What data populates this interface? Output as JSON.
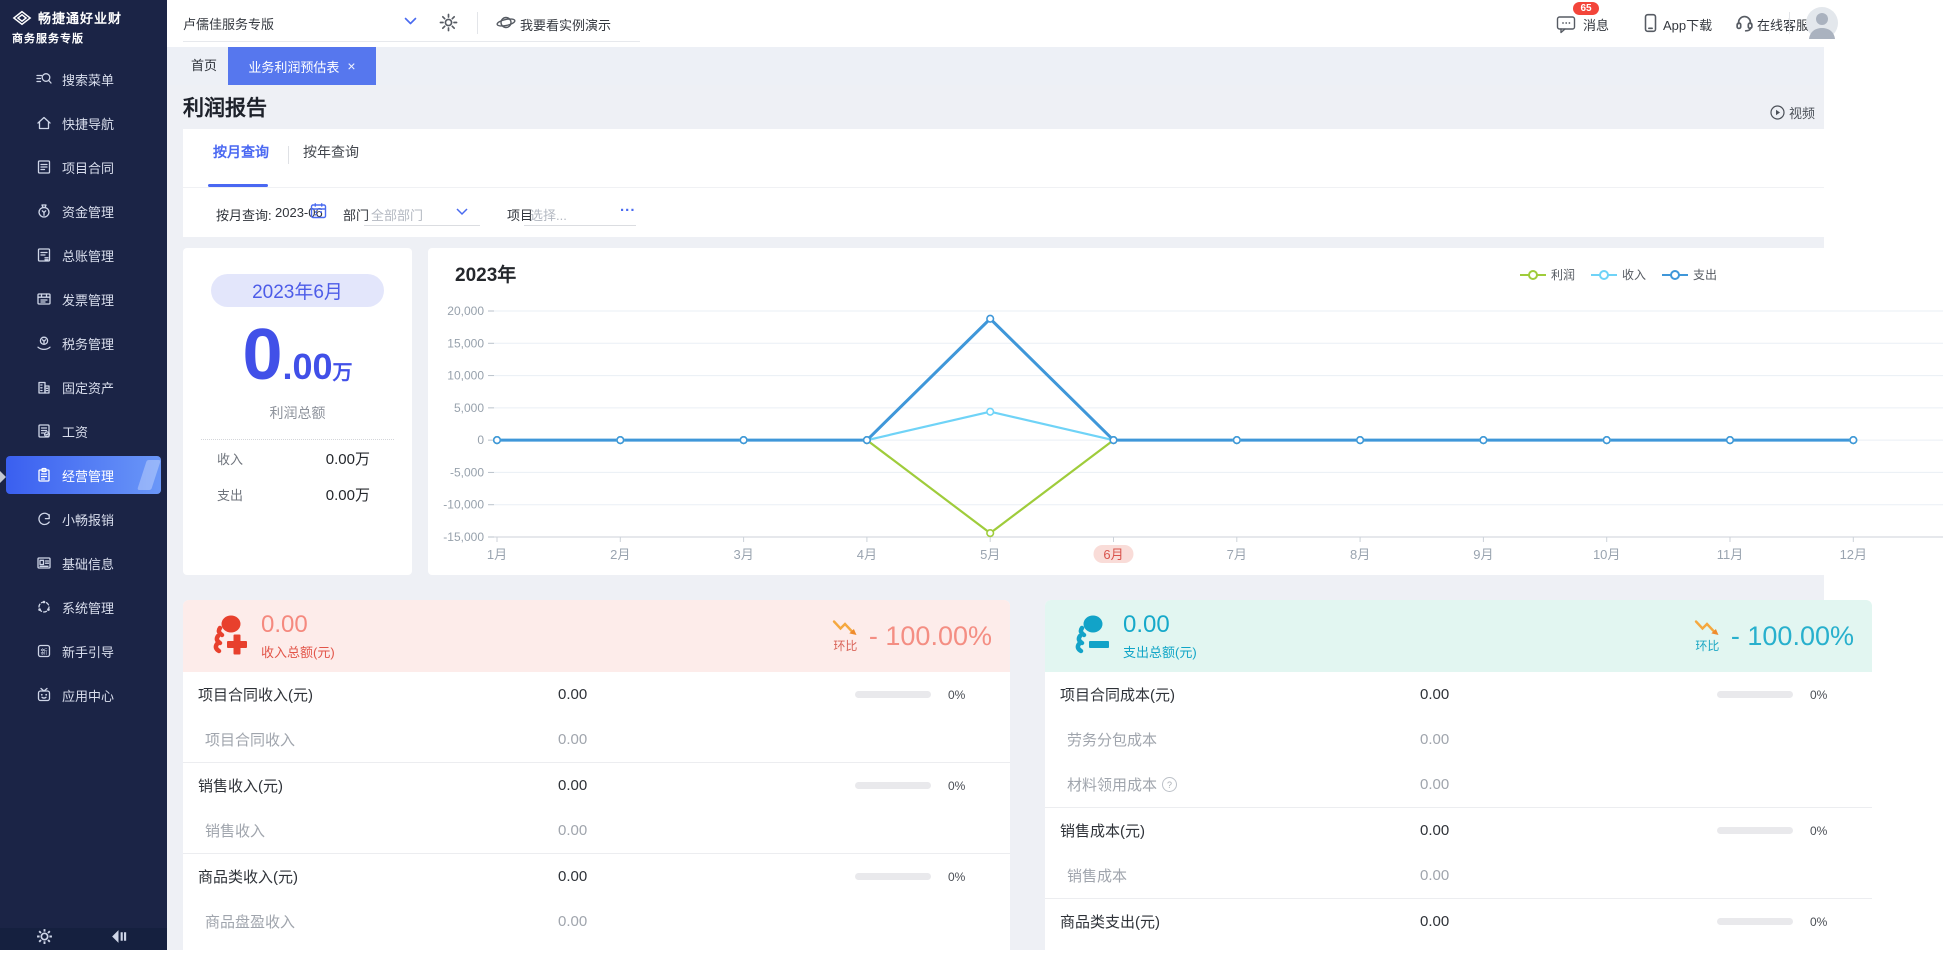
{
  "sidebar": {
    "logo_title": "畅捷通好业财",
    "logo_subtitle": "商务服务专版",
    "items": [
      {
        "label": "搜索菜单",
        "icon": "search"
      },
      {
        "label": "快捷导航",
        "icon": "home"
      },
      {
        "label": "项目合同",
        "icon": "contract"
      },
      {
        "label": "资金管理",
        "icon": "funds"
      },
      {
        "label": "总账管理",
        "icon": "ledger"
      },
      {
        "label": "发票管理",
        "icon": "invoice"
      },
      {
        "label": "税务管理",
        "icon": "tax"
      },
      {
        "label": "固定资产",
        "icon": "assets"
      },
      {
        "label": "工资",
        "icon": "salary"
      },
      {
        "label": "经营管理",
        "icon": "operations",
        "active": true
      },
      {
        "label": "小畅报销",
        "icon": "expense"
      },
      {
        "label": "基础信息",
        "icon": "info"
      },
      {
        "label": "系统管理",
        "icon": "system"
      },
      {
        "label": "新手引导",
        "icon": "guide"
      },
      {
        "label": "应用中心",
        "icon": "apps"
      }
    ]
  },
  "topbar": {
    "workspace": "卢儒佳服务专版",
    "demo_link": "我要看实例演示",
    "messages_label": "消息",
    "messages_badge": "65",
    "app_download_label": "App下载",
    "support_label": "在线客服"
  },
  "tabs": {
    "home": "首页",
    "active_tab": "业务利润预估表"
  },
  "page": {
    "title": "利润报告",
    "video_label": "视频"
  },
  "query": {
    "tab_month": "按月查询",
    "tab_year": "按年查询",
    "month_label": "按月查询:",
    "month_value": "2023-06",
    "dept_label": "部门",
    "dept_value": "全部部门",
    "project_label": "项目",
    "project_placeholder": "选择...",
    "project_more": "..."
  },
  "summary": {
    "period": "2023年6月",
    "big_int": "0",
    "big_dec": ".00",
    "big_unit": "万",
    "big_caption": "利润总额",
    "rows": [
      {
        "label": "收入",
        "value": "0.00万"
      },
      {
        "label": "支出",
        "value": "0.00万"
      }
    ]
  },
  "chart_data": {
    "type": "line",
    "title": "2023年",
    "categories": [
      "1月",
      "2月",
      "3月",
      "4月",
      "5月",
      "6月",
      "7月",
      "8月",
      "9月",
      "10月",
      "11月",
      "12月"
    ],
    "highlighted_category": "6月",
    "series": [
      {
        "name": "利润",
        "color": "#9fcc3b",
        "values": [
          0,
          0,
          0,
          0,
          -14400,
          0,
          0,
          0,
          0,
          0,
          0,
          0
        ]
      },
      {
        "name": "收入",
        "color": "#6fd3f7",
        "values": [
          0,
          0,
          0,
          0,
          4400,
          0,
          0,
          0,
          0,
          0,
          0,
          0
        ]
      },
      {
        "name": "支出",
        "color": "#3f97d9",
        "values": [
          0,
          0,
          0,
          0,
          18800,
          0,
          0,
          0,
          0,
          0,
          0,
          0
        ]
      }
    ],
    "ylim": [
      -15000,
      20000
    ],
    "ytick_step": 5000,
    "ytick_labels": [
      "20,000",
      "15,000",
      "10,000",
      "5,000",
      "0",
      "-5,000",
      "-10,000",
      "-15,000"
    ],
    "grid": true,
    "legend_position": "top-right"
  },
  "income_card": {
    "total": "0.00",
    "total_label": "收入总额(元)",
    "mom_label": "环比",
    "mom_value": "- 100.00%",
    "rows": [
      {
        "label": "项目合同收入(元)",
        "value": "0.00",
        "pct": "0%",
        "type": "main"
      },
      {
        "label": "项目合同收入",
        "value": "0.00",
        "type": "sub",
        "divider_after": true
      },
      {
        "label": "销售收入(元)",
        "value": "0.00",
        "pct": "0%",
        "type": "main"
      },
      {
        "label": "销售收入",
        "value": "0.00",
        "type": "sub",
        "divider_after": true
      },
      {
        "label": "商品类收入(元)",
        "value": "0.00",
        "pct": "0%",
        "type": "main"
      },
      {
        "label": "商品盘盈收入",
        "value": "0.00",
        "type": "sub"
      }
    ]
  },
  "expense_card": {
    "total": "0.00",
    "total_label": "支出总额(元)",
    "mom_label": "环比",
    "mom_value": "- 100.00%",
    "rows": [
      {
        "label": "项目合同成本(元)",
        "value": "0.00",
        "pct": "0%",
        "type": "main"
      },
      {
        "label": "劳务分包成本",
        "value": "0.00",
        "type": "sub"
      },
      {
        "label": "材料领用成本",
        "value": "0.00",
        "type": "sub",
        "help": true,
        "divider_after": true
      },
      {
        "label": "销售成本(元)",
        "value": "0.00",
        "pct": "0%",
        "type": "main"
      },
      {
        "label": "销售成本",
        "value": "0.00",
        "type": "sub",
        "divider_after": true
      },
      {
        "label": "商品类支出(元)",
        "value": "0.00",
        "pct": "0%",
        "type": "main"
      }
    ]
  },
  "colors": {
    "accent": "#4a68f2",
    "sidebar_bg": "#1b2446",
    "active_tab": "#5677ee",
    "income_main": "#e8402d",
    "income_head_bg": "#fdecea",
    "expense_main": "#12a3c8",
    "expense_head_bg": "#e2f6f1",
    "month_highlight": "#d9544d",
    "badge": "#f3453a"
  }
}
